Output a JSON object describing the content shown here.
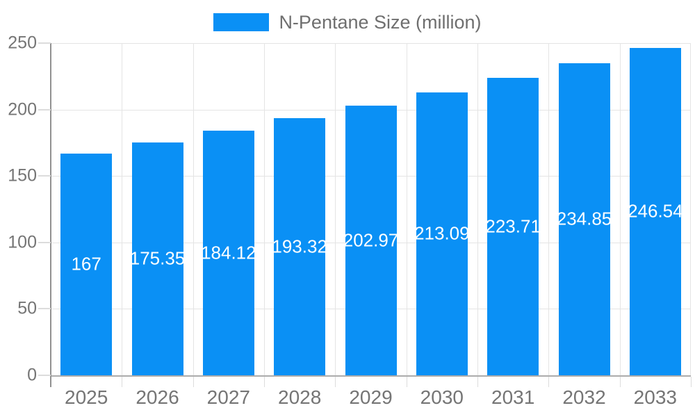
{
  "legend": {
    "label": "N-Pentane Size (million)"
  },
  "colors": {
    "bar": "#0A90F5",
    "grid": "#E4E4E4",
    "tick": "#DCDCDC",
    "axis_y": "#919191",
    "axis_x": "#ACACAC",
    "text": "#757575",
    "value_label": "#FFFFFF",
    "background": "#FFFFFF"
  },
  "chart_data": {
    "type": "bar",
    "title": "",
    "series_name": "N-Pentane Size (million)",
    "categories": [
      "2025",
      "2026",
      "2027",
      "2028",
      "2029",
      "2030",
      "2031",
      "2032",
      "2033"
    ],
    "values": [
      167,
      175.35,
      184.12,
      193.32,
      202.97,
      213.09,
      223.71,
      234.85,
      246.54
    ],
    "value_labels": [
      "167",
      "175.35",
      "184.12",
      "193.32",
      "202.97",
      "213.09",
      "223.71",
      "234.85",
      "246.54"
    ],
    "xlabel": "",
    "ylabel": "",
    "ylim": [
      0,
      250
    ],
    "y_ticks": [
      0,
      50,
      100,
      150,
      200,
      250
    ],
    "y_tick_labels": [
      "0",
      "50",
      "100",
      "150",
      "200",
      "250"
    ],
    "grid": true,
    "legend_position": "top"
  }
}
